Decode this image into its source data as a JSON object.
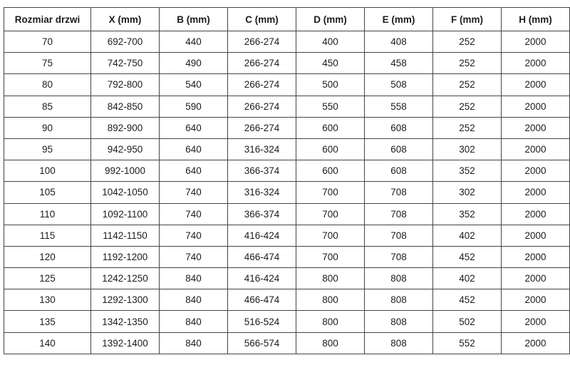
{
  "chart_data": {
    "type": "table",
    "columns": [
      "Rozmiar drzwi",
      "X (mm)",
      "B (mm)",
      "C (mm)",
      "D (mm)",
      "E (mm)",
      "F (mm)",
      "H (mm)"
    ],
    "rows": [
      [
        "70",
        "692-700",
        "440",
        "266-274",
        "400",
        "408",
        "252",
        "2000"
      ],
      [
        "75",
        "742-750",
        "490",
        "266-274",
        "450",
        "458",
        "252",
        "2000"
      ],
      [
        "80",
        "792-800",
        "540",
        "266-274",
        "500",
        "508",
        "252",
        "2000"
      ],
      [
        "85",
        "842-850",
        "590",
        "266-274",
        "550",
        "558",
        "252",
        "2000"
      ],
      [
        "90",
        "892-900",
        "640",
        "266-274",
        "600",
        "608",
        "252",
        "2000"
      ],
      [
        "95",
        "942-950",
        "640",
        "316-324",
        "600",
        "608",
        "302",
        "2000"
      ],
      [
        "100",
        "992-1000",
        "640",
        "366-374",
        "600",
        "608",
        "352",
        "2000"
      ],
      [
        "105",
        "1042-1050",
        "740",
        "316-324",
        "700",
        "708",
        "302",
        "2000"
      ],
      [
        "110",
        "1092-1100",
        "740",
        "366-374",
        "700",
        "708",
        "352",
        "2000"
      ],
      [
        "115",
        "1142-1150",
        "740",
        "416-424",
        "700",
        "708",
        "402",
        "2000"
      ],
      [
        "120",
        "1192-1200",
        "740",
        "466-474",
        "700",
        "708",
        "452",
        "2000"
      ],
      [
        "125",
        "1242-1250",
        "840",
        "416-424",
        "800",
        "808",
        "402",
        "2000"
      ],
      [
        "130",
        "1292-1300",
        "840",
        "466-474",
        "800",
        "808",
        "452",
        "2000"
      ],
      [
        "135",
        "1342-1350",
        "840",
        "516-524",
        "800",
        "808",
        "502",
        "2000"
      ],
      [
        "140",
        "1392-1400",
        "840",
        "566-574",
        "800",
        "808",
        "552",
        "2000"
      ]
    ],
    "title": "",
    "layout": {
      "grid": "all-borders",
      "header_row": true
    }
  },
  "colors": {
    "background": "#ffffff",
    "border": "#454545",
    "text": "#1c1c1c"
  }
}
